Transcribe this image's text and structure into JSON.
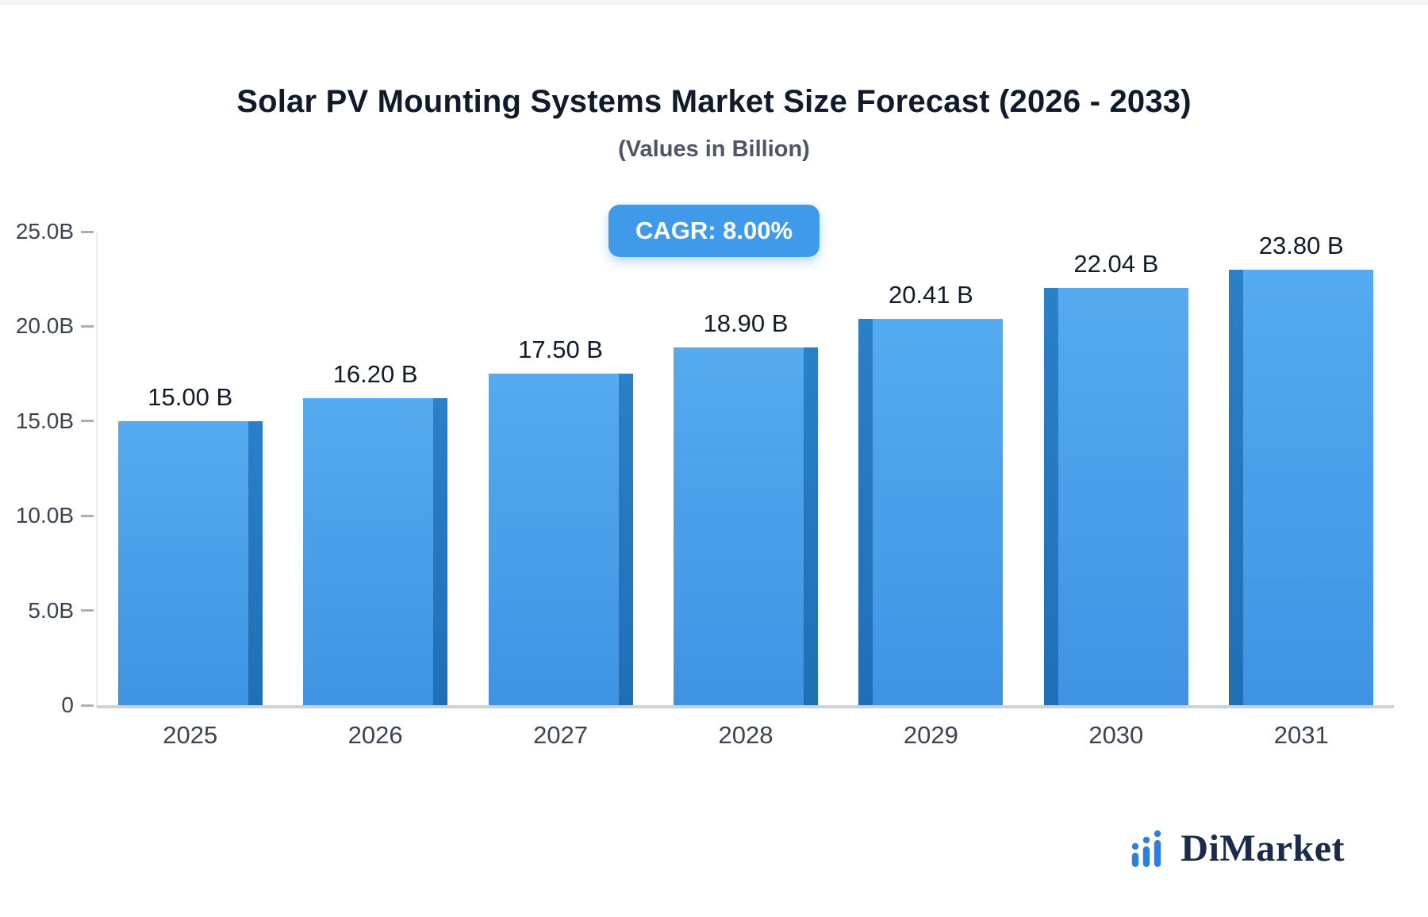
{
  "header": {
    "title": "Solar PV Mounting Systems Market Size Forecast (2026 - 2033)",
    "subtitle": "(Values in Billion)"
  },
  "badge": {
    "label": "CAGR: 8.00%",
    "bg_color": "#3f9bea",
    "text_color": "#ffffff"
  },
  "chart_data": {
    "type": "bar",
    "title": "Solar PV Mounting Systems Market Size Forecast (2026 - 2033)",
    "subtitle": "(Values in Billion)",
    "categories": [
      "2025",
      "2026",
      "2027",
      "2028",
      "2029",
      "2030",
      "2031"
    ],
    "values": [
      15.0,
      16.2,
      17.5,
      18.9,
      20.41,
      22.04,
      23.8
    ],
    "value_labels": [
      "15.00 B",
      "16.20 B",
      "17.50 B",
      "18.90 B",
      "20.41 B",
      "22.04 B",
      "23.80 B"
    ],
    "xlabel": "",
    "ylabel": "",
    "ylim": [
      0,
      25
    ],
    "yticks": [
      {
        "label": "25.0B",
        "value": 25
      },
      {
        "label": "20.0B",
        "value": 20
      },
      {
        "label": "15.0B",
        "value": 15
      },
      {
        "label": "10.0B",
        "value": 10
      },
      {
        "label": "5.0B",
        "value": 5
      },
      {
        "label": "0",
        "value": 0
      }
    ],
    "grid": false,
    "legend": false,
    "bar_color_top": "#55abee",
    "bar_color_bottom": "#3e94e2",
    "bar_edge_color": "#1f6fb6"
  },
  "footer": {
    "brand": "DiMarket",
    "logo_icon": "bar-chart-icon",
    "logo_color": "#2e7fe2"
  }
}
